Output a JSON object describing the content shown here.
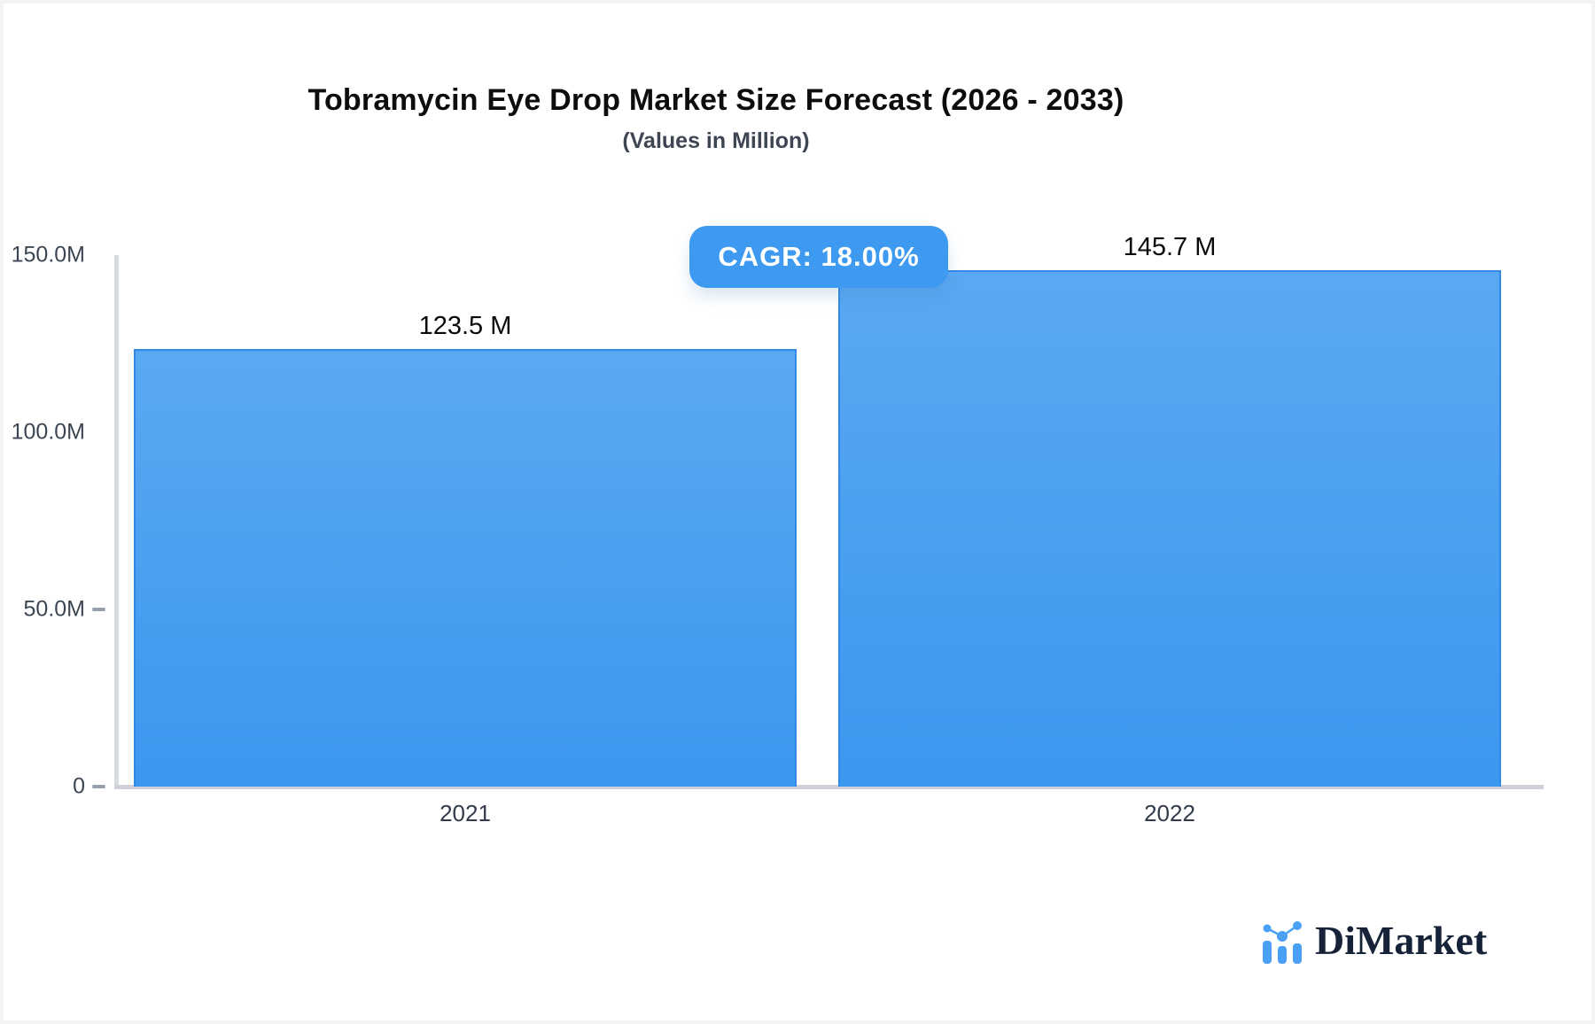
{
  "header": {
    "title": "Tobramycin Eye Drop Market Size Forecast (2026 - 2033)",
    "subtitle": "(Values in Million)"
  },
  "badge": {
    "label": "CAGR: 18.00%"
  },
  "chart_data": {
    "type": "bar",
    "title": "Tobramycin Eye Drop Market Size Forecast (2026 - 2033)",
    "subtitle": "(Values in Million)",
    "categories": [
      "2021",
      "2022"
    ],
    "values": [
      123.5,
      145.7
    ],
    "value_labels": [
      "123.5 M",
      "145.7 M"
    ],
    "unit": "Million",
    "cagr": "18.00%",
    "xlabel": "",
    "ylabel": "",
    "ylim": [
      0,
      150
    ],
    "y_ticks": [
      {
        "label": "150.0M",
        "value": 150,
        "dash": false
      },
      {
        "label": "100.0M",
        "value": 100,
        "dash": false
      },
      {
        "label": "50.0M",
        "value": 50,
        "dash": true
      },
      {
        "label": "0",
        "value": 0,
        "dash": true
      }
    ],
    "grid": false,
    "legend_position": "none",
    "colors": {
      "bar_gradient_top": "#5BA8F2",
      "bar_gradient_bottom": "#3B97EF",
      "bar_border": "#3389E6",
      "badge_bg": "#3D9AF0",
      "axis_line": "#D6D9DE",
      "tick_text": "#3D4754"
    }
  },
  "branding": {
    "logo_text": "DiMarket",
    "logo_icon": "mini-bar-chart-icon",
    "logo_icon_color": "#4AA0F5",
    "logo_text_color": "#152238"
  }
}
